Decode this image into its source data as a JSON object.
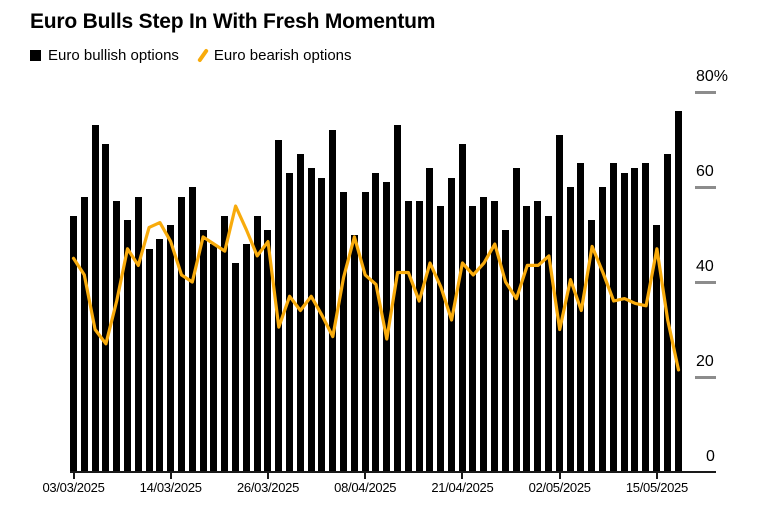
{
  "title": "Euro Bulls Step In With Fresh Momentum",
  "legend": {
    "bullish_label": "Euro bullish options",
    "bearish_label": "Euro bearish options",
    "bullish_swatch": "black-square",
    "bearish_swatch": "yellow-slash"
  },
  "colors": {
    "bars": "#000000",
    "line": "#F8AB0C",
    "axis": "#1a1a1a",
    "tick_dash": "#8c8c8c",
    "background": "#ffffff"
  },
  "chart_data": {
    "type": "bar",
    "title": "Euro Bulls Step In With Fresh Momentum",
    "xlabel": "",
    "ylabel": "",
    "ylim": [
      0,
      80
    ],
    "grid": false,
    "legend_position": "top-left",
    "y_ticks": [
      {
        "label": "80%",
        "value": 80
      },
      {
        "label": "60",
        "value": 60
      },
      {
        "label": "40",
        "value": 40
      },
      {
        "label": "20",
        "value": 20
      },
      {
        "label": "0",
        "value": 0
      }
    ],
    "x_tick_labels": [
      "03/03/2025",
      "14/03/2025",
      "26/03/2025",
      "08/04/2025",
      "21/04/2025",
      "02/05/2025",
      "15/05/2025"
    ],
    "x_tick_indices": [
      0,
      9,
      18,
      27,
      36,
      45,
      54
    ],
    "series": [
      {
        "name": "Euro bullish options",
        "type": "bar",
        "color": "#000000",
        "values": [
          54,
          58,
          73,
          69,
          57,
          53,
          58,
          47,
          49,
          52,
          58,
          60,
          51,
          48,
          54,
          44,
          48,
          54,
          51,
          70,
          63,
          67,
          64,
          62,
          72,
          59,
          50,
          59,
          63,
          61,
          73,
          57,
          57,
          64,
          56,
          62,
          69,
          56,
          58,
          57,
          51,
          64,
          56,
          57,
          54,
          71,
          60,
          65,
          53,
          60,
          65,
          63,
          64,
          65,
          52,
          67,
          76
        ]
      },
      {
        "name": "Euro bearish options",
        "type": "line",
        "color": "#F8AB0C",
        "values": [
          45,
          41.5,
          30,
          27,
          36,
          47,
          43.5,
          51.5,
          52.5,
          48.5,
          41.5,
          40,
          49.5,
          48,
          46.5,
          56,
          51,
          45.5,
          48.5,
          30.5,
          37,
          34,
          37,
          33,
          28.5,
          41,
          49.5,
          41.5,
          39.5,
          28,
          42,
          42,
          36,
          44,
          39,
          32,
          44,
          41.5,
          44,
          48,
          40,
          36.5,
          43.5,
          43.5,
          45.5,
          30,
          40.5,
          34,
          47.5,
          42,
          36,
          36.5,
          35.5,
          35,
          47,
          32,
          21.5
        ]
      }
    ]
  }
}
